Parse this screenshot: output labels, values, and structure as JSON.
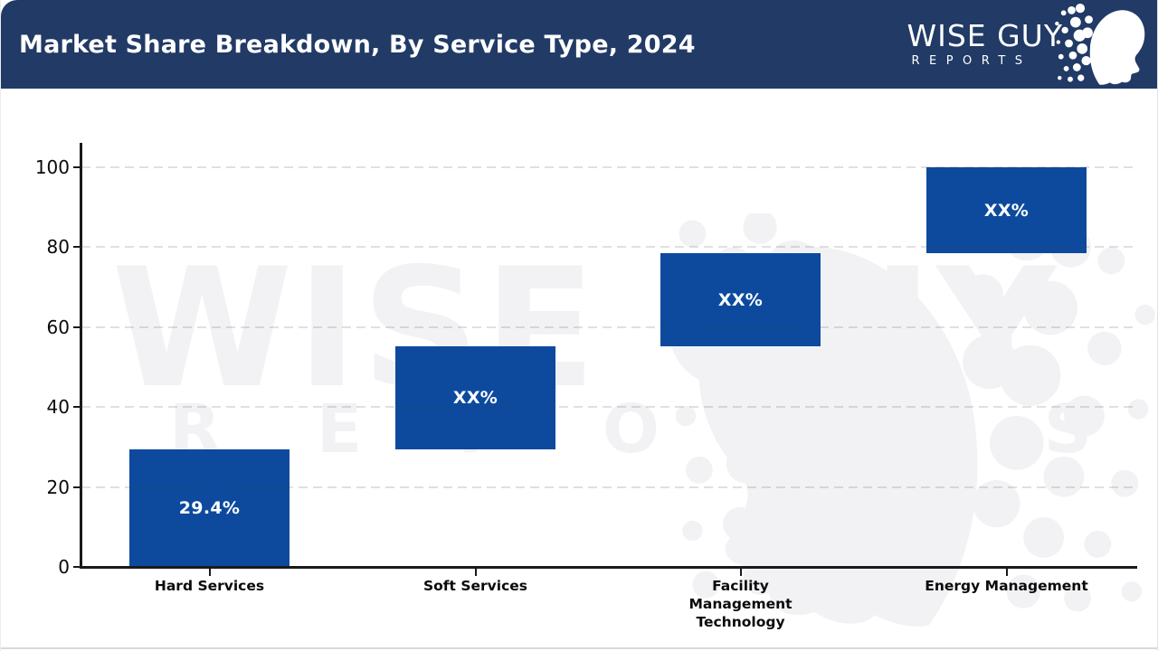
{
  "header": {
    "title": "Market Share Breakdown, By Service Type, 2024",
    "logo": {
      "name": "WISE GUY",
      "subname": "REPORTS",
      "face_icon": "face-profile-dots-icon"
    }
  },
  "watermark": {
    "line1": "WISE GUY",
    "line2": "R E P O R T S"
  },
  "colors": {
    "header_bg": "#213a66",
    "bar": "#0d4a9e",
    "bar_label_text": "#ffffff",
    "title_text": "#ffffff",
    "axis": "#1a1a1a",
    "gridline": "#dcdcdc",
    "watermark": "#f2f2f5"
  },
  "chart_data": {
    "type": "bar",
    "subtype": "waterfall",
    "title": "Market Share Breakdown, By Service Type, 2024",
    "categories": [
      "Hard Services",
      "Soft Services",
      "Facility\nManagement\nTechnology",
      "Energy Management"
    ],
    "segments": [
      {
        "category": "Hard Services",
        "start": 0,
        "end": 29.4,
        "label": "29.4%"
      },
      {
        "category": "Soft Services",
        "start": 29.4,
        "end": 55.1,
        "label": "XX%"
      },
      {
        "category": "Facility Management Technology",
        "start": 55.1,
        "end": 78.5,
        "label": "XX%"
      },
      {
        "category": "Energy Management",
        "start": 78.5,
        "end": 100,
        "label": "XX%"
      }
    ],
    "yticks": [
      0,
      20,
      40,
      60,
      80,
      100
    ],
    "ylim": [
      0,
      100
    ],
    "xlabel": "",
    "ylabel": "",
    "grid": "horizontal-dashed",
    "legend": "none"
  }
}
